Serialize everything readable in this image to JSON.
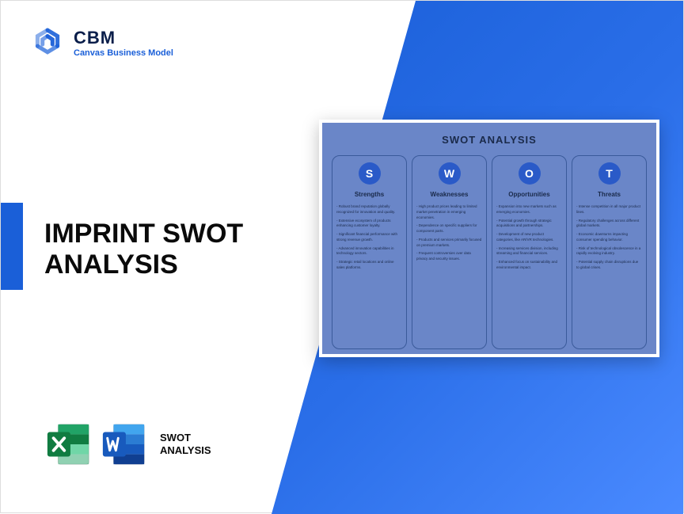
{
  "logo": {
    "title": "CBM",
    "subtitle": "Canvas Business Model",
    "icon_color": "#1a5fd8"
  },
  "main_title": "IMPRINT SWOT ANALYSIS",
  "accent_color": "#1a5fd8",
  "bottom": {
    "excel_color_dark": "#107c41",
    "excel_color_light": "#21a366",
    "word_color_dark": "#185abd",
    "word_color_light": "#2b7cd3",
    "label_line1": "SWOT",
    "label_line2": "ANALYSIS"
  },
  "swot": {
    "title": "SWOT ANALYSIS",
    "card_bg": "#6a86c8",
    "circle_bg": "#2a5ac8",
    "border_color": "#3a5a9a",
    "columns": [
      {
        "letter": "S",
        "heading": "Strengths",
        "items": [
          "- Robust brand reputation globally recognized for innovation and quality.",
          "- Extensive ecosystem of products enhancing customer loyalty.",
          "- Significant financial performance with strong revenue growth.",
          "- Advanced innovation capabilities in technology sectors.",
          "- Strategic retail locations and online sales platforms."
        ]
      },
      {
        "letter": "W",
        "heading": "Weaknesses",
        "items": [
          "- High product prices leading to limited market penetration in emerging economies.",
          "- Dependence on specific suppliers for component parts.",
          "- Products and services primarily focused on premium markets.",
          "- Frequent controversies over data privacy and security issues."
        ]
      },
      {
        "letter": "O",
        "heading": "Opportunities",
        "items": [
          "- Expansion into new markets such as emerging economies.",
          "- Potential growth through strategic acquisitions and partnerships.",
          "- Development of new product categories, like AR/VR technologies.",
          "- Increasing services division, including streaming and financial services.",
          "- Enhanced focus on sustainability and environmental impact."
        ]
      },
      {
        "letter": "T",
        "heading": "Threats",
        "items": [
          "- Intense competition in all major product lines.",
          "- Regulatory challenges across different global markets.",
          "- Economic downturns impacting consumer spending behavior.",
          "- Risk of technological obsolescence in a rapidly evolving industry.",
          "- Potential supply chain disruptions due to global crises."
        ]
      }
    ]
  }
}
